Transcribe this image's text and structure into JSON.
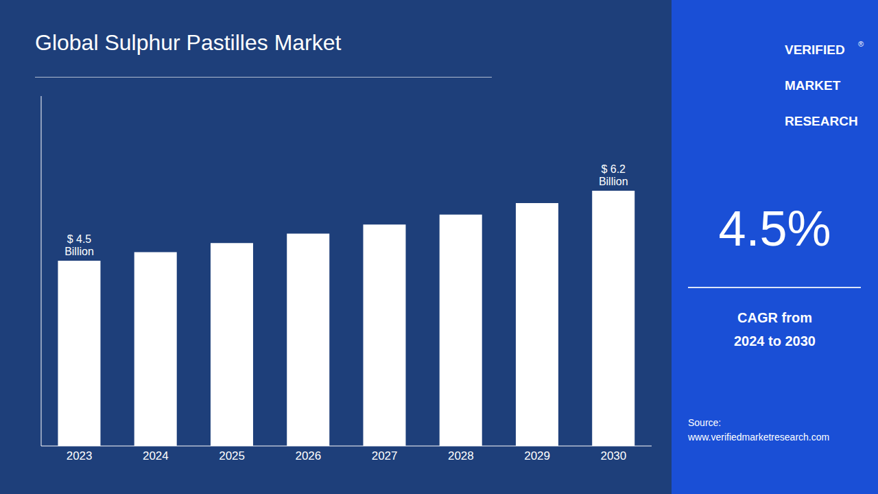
{
  "chart_data": {
    "type": "bar",
    "title": "Global Sulphur Pastilles Market",
    "categories": [
      "2023",
      "2024",
      "2025",
      "2026",
      "2027",
      "2028",
      "2029",
      "2030"
    ],
    "values": [
      4.5,
      4.71,
      4.93,
      5.16,
      5.38,
      5.62,
      5.9,
      6.2
    ],
    "color": "#ffffff",
    "ylim": [
      0,
      8.5
    ],
    "grid": false,
    "tick_labels": "x",
    "annotations": [
      {
        "text": "$ 4.5\nBillion",
        "category": "2023"
      },
      {
        "text": "$ 6.2\nBillion",
        "category": "2030"
      },
      {
        "text": "VERIFIED"
      },
      {
        "text": "®"
      },
      {
        "text": "MARKET"
      },
      {
        "text": "RESEARCH"
      },
      {
        "text": "4.5%"
      },
      {
        "text": "CAGR from\n2024 to 2030"
      },
      {
        "text": "Source:\nwww.verifiedmarketresearch.com"
      }
    ]
  }
}
